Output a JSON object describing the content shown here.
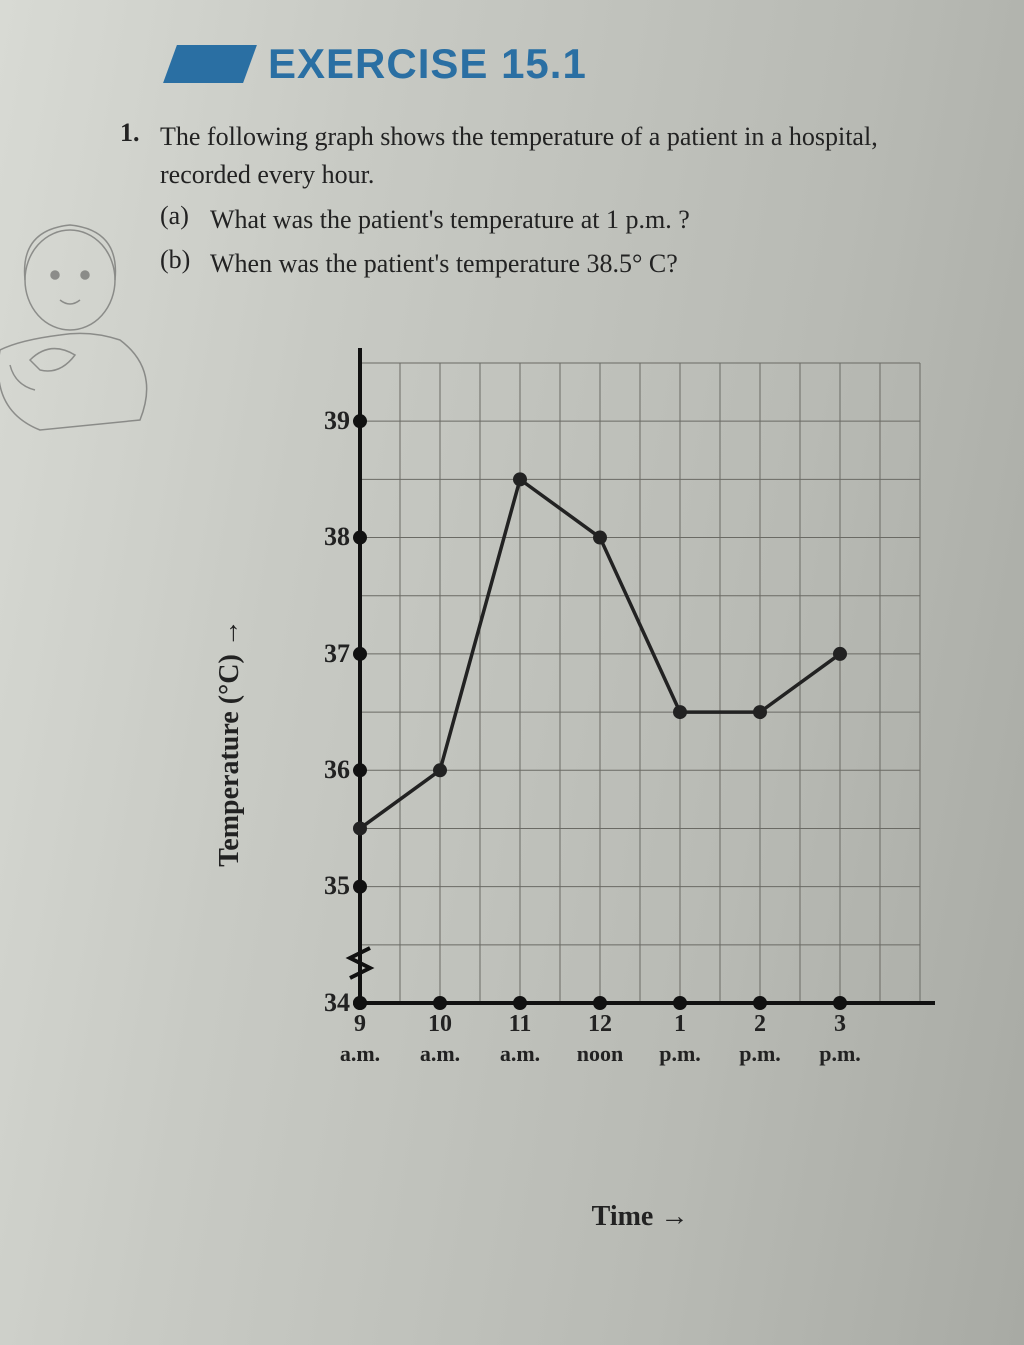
{
  "header": {
    "title": "EXERCISE 15.1"
  },
  "question": {
    "number": "1.",
    "text": "The following graph shows the temperature of a patient in a hospital, recorded every hour.",
    "parts": [
      {
        "label": "(a)",
        "text": "What was the patient's temperature at 1 p.m. ?"
      },
      {
        "label": "(b)",
        "text": "When was the patient's temperature 38.5° C?"
      }
    ]
  },
  "chart": {
    "type": "line",
    "y_axis_label": "Temperature (°C) →",
    "x_axis_label": "Time →",
    "y_ticks": [
      34,
      35,
      36,
      37,
      38,
      39
    ],
    "y_min": 34,
    "y_max": 39.5,
    "x_ticks": [
      {
        "pos": 0,
        "num": "9",
        "unit": "a.m."
      },
      {
        "pos": 1,
        "num": "10",
        "unit": "a.m."
      },
      {
        "pos": 2,
        "num": "11",
        "unit": "a.m."
      },
      {
        "pos": 3,
        "num": "12",
        "unit": "noon"
      },
      {
        "pos": 4,
        "num": "1",
        "unit": "p.m."
      },
      {
        "pos": 5,
        "num": "2",
        "unit": "p.m."
      },
      {
        "pos": 6,
        "num": "3",
        "unit": "p.m."
      }
    ],
    "x_count": 7,
    "x_grid_sub": 2,
    "y_grid_sub": 2,
    "points": [
      {
        "x": 0,
        "y": 35.5
      },
      {
        "x": 1,
        "y": 36.0
      },
      {
        "x": 2,
        "y": 38.5
      },
      {
        "x": 3,
        "y": 38.0
      },
      {
        "x": 4,
        "y": 36.5
      },
      {
        "x": 5,
        "y": 36.5
      },
      {
        "x": 6,
        "y": 37.0
      }
    ],
    "colors": {
      "grid": "#6a6a64",
      "axis": "#111111",
      "line": "#222222",
      "point_fill": "#222222",
      "bg": "transparent"
    },
    "line_width": 3.5,
    "point_radius": 7,
    "axis_break": true
  }
}
